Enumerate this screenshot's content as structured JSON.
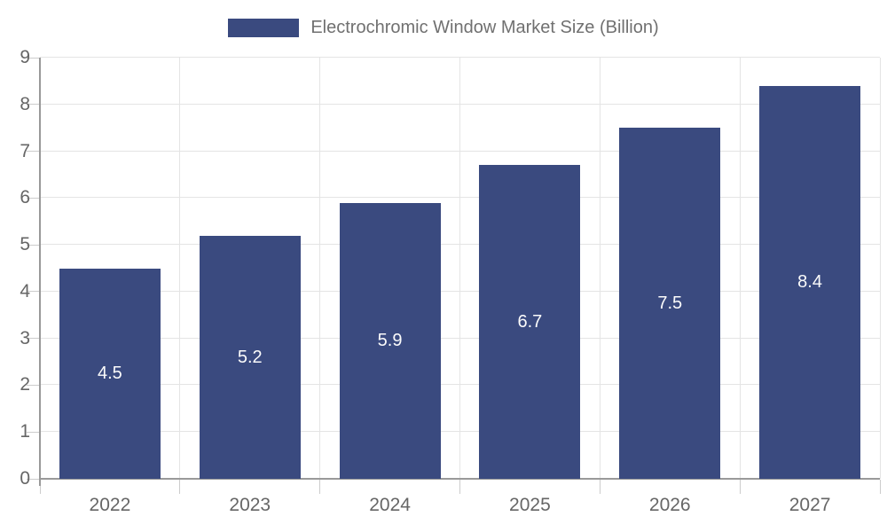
{
  "chart_data": {
    "type": "bar",
    "title": "Electrochromic Window Market Size (Billion)",
    "legend": [
      "Electrochromic Window Market Size (Billion)"
    ],
    "legend_position": "top",
    "categories": [
      "2022",
      "2023",
      "2024",
      "2025",
      "2026",
      "2027"
    ],
    "series": [
      {
        "name": "Electrochromic Window Market Size (Billion)",
        "values": [
          4.5,
          5.2,
          5.9,
          6.7,
          7.5,
          8.4
        ]
      }
    ],
    "value_labels_shown": true,
    "value_label_position": "inside-center",
    "xlabel": "",
    "ylabel": "",
    "ylim": [
      0,
      9
    ],
    "y_ticks": [
      0,
      1,
      2,
      3,
      4,
      5,
      6,
      7,
      8,
      9
    ],
    "grid": true,
    "colors": {
      "bar": "#3A4A7F",
      "value_label": "#FBFBFB",
      "gridline": "#E4E4E4",
      "axis": "#999999",
      "tick": "#CCCCCC",
      "tick_label": "#666666",
      "legend_text": "#707070"
    }
  }
}
